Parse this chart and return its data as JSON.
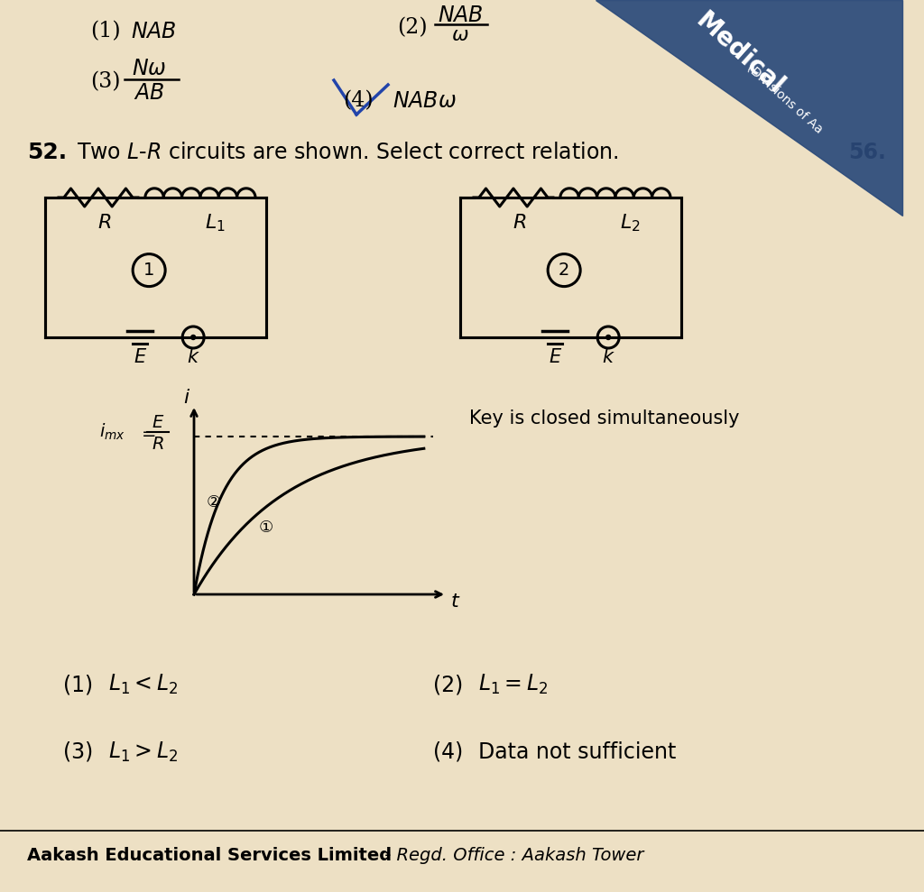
{
  "bg_color": "#ede0c4",
  "text_color": "#000000",
  "footer_bold": "Aakash Educational Services Limited",
  "footer_italic": " - Regd. Office : Aakash Tower",
  "graph_annotation": "Key is closed simultaneously",
  "circuit1_label": "1",
  "circuit2_label": "2",
  "L1_label": "L_1",
  "L2_label": "L_2",
  "q52_text": "Two $L$-$R$ circuits are shown. Select correct relation.",
  "num_56": "56.",
  "opt1_left": "(1)",
  "opt1_right": "(2)",
  "opt2_left": "(3)",
  "opt2_right": "(4)",
  "val1_left": "$\\dot{L}_1 < L_2$",
  "val1_right": "$L_1 = L_2$",
  "val2_left": "$L_1 > L_2$",
  "val2_right": "Data not sufficient",
  "blue_tri_color": "#2b4a7a"
}
